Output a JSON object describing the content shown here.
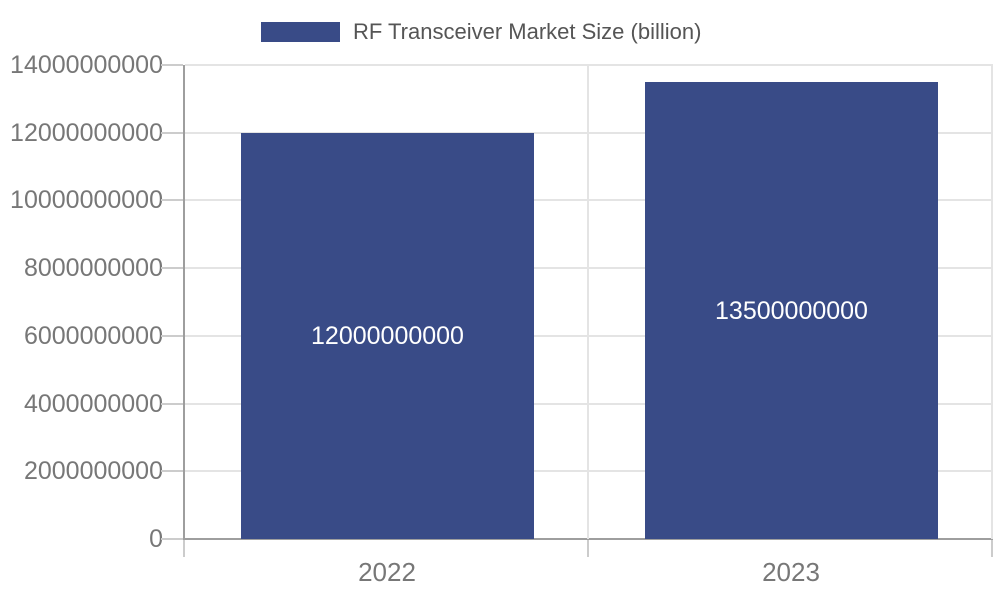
{
  "chart_data": {
    "type": "bar",
    "title": "",
    "legend_label": "RF Transceiver Market Size (billion)",
    "legend_position": "top",
    "categories": [
      "2022",
      "2023"
    ],
    "series": [
      {
        "name": "RF Transceiver Market Size (billion)",
        "values": [
          12000000000,
          13500000000
        ]
      }
    ],
    "bar_value_labels": [
      "12000000000",
      "13500000000"
    ],
    "xlabel": "",
    "ylabel": "",
    "ylim": [
      0,
      14000000000
    ],
    "ytick_values": [
      0,
      2000000000,
      4000000000,
      6000000000,
      8000000000,
      10000000000,
      12000000000,
      14000000000
    ],
    "ytick_labels": [
      "0",
      "2000000000",
      "4000000000",
      "6000000000",
      "8000000000",
      "10000000000",
      "12000000000",
      "14000000000"
    ],
    "grid": true,
    "grid_vertical_at_category_boundaries": true,
    "colors": {
      "bar": "#394B87",
      "bar_label": "#FFFFFF",
      "grid_line": "#E4E4E4",
      "axis_line": "#9E9E9E",
      "tick_mark": "#CCCCCC",
      "tick_label": "#777777",
      "legend_text": "#555555",
      "background": "#FFFFFF"
    }
  }
}
